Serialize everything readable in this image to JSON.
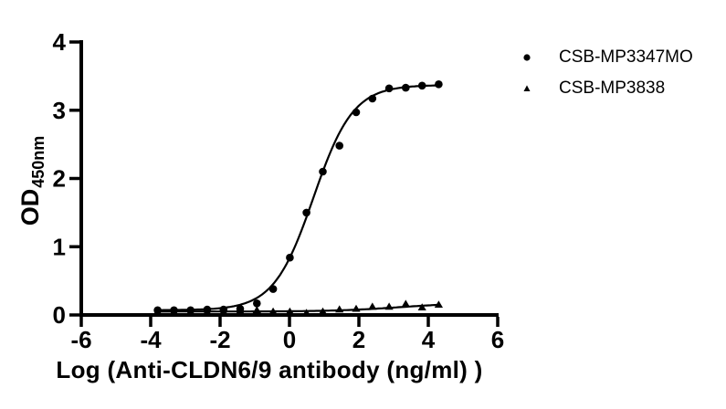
{
  "page": {
    "background": "#ffffff",
    "foreground": "#000000"
  },
  "chart_data": {
    "type": "scatter",
    "title": "",
    "xlabel": "Log (Anti-CLDN6/9 antibody (ng/ml)  )",
    "ylabel": {
      "main": "OD",
      "sub": "450nm"
    },
    "xlim": [
      -6,
      6
    ],
    "ylim": [
      0,
      4
    ],
    "x_ticks": [
      -6,
      -4,
      -2,
      0,
      2,
      4,
      6
    ],
    "y_ticks": [
      0,
      1,
      2,
      3,
      4
    ],
    "grid": false,
    "legend_position": "right-top",
    "axis_color": "#000000",
    "x": [
      -3.8,
      -3.33,
      -2.85,
      -2.37,
      -1.9,
      -1.42,
      -0.94,
      -0.47,
      0.01,
      0.49,
      0.96,
      1.44,
      1.92,
      2.39,
      2.87,
      3.35,
      3.82,
      4.3
    ],
    "series": [
      {
        "name": "CSB-MP3347MO",
        "marker": "circle",
        "color": "#000000",
        "values": [
          0.07,
          0.07,
          0.07,
          0.08,
          0.08,
          0.09,
          0.17,
          0.38,
          0.84,
          1.5,
          2.1,
          2.48,
          2.97,
          3.17,
          3.32,
          3.33,
          3.36,
          3.38
        ],
        "fit": {
          "type": "4pl",
          "bottom": 0.07,
          "top": 3.37,
          "logEC50": 0.69,
          "hill": 0.76
        }
      },
      {
        "name": "CSB-MP3838",
        "marker": "triangle",
        "color": "#000000",
        "values": [
          0.05,
          0.05,
          0.05,
          0.05,
          0.05,
          0.06,
          0.07,
          0.05,
          0.05,
          0.03,
          0.05,
          0.08,
          0.09,
          0.12,
          0.12,
          0.16,
          0.11,
          0.15
        ],
        "fit": {
          "type": "4pl",
          "bottom": 0.05,
          "top": 0.18,
          "logEC50": 3.2,
          "hill": 0.45
        }
      }
    ]
  }
}
